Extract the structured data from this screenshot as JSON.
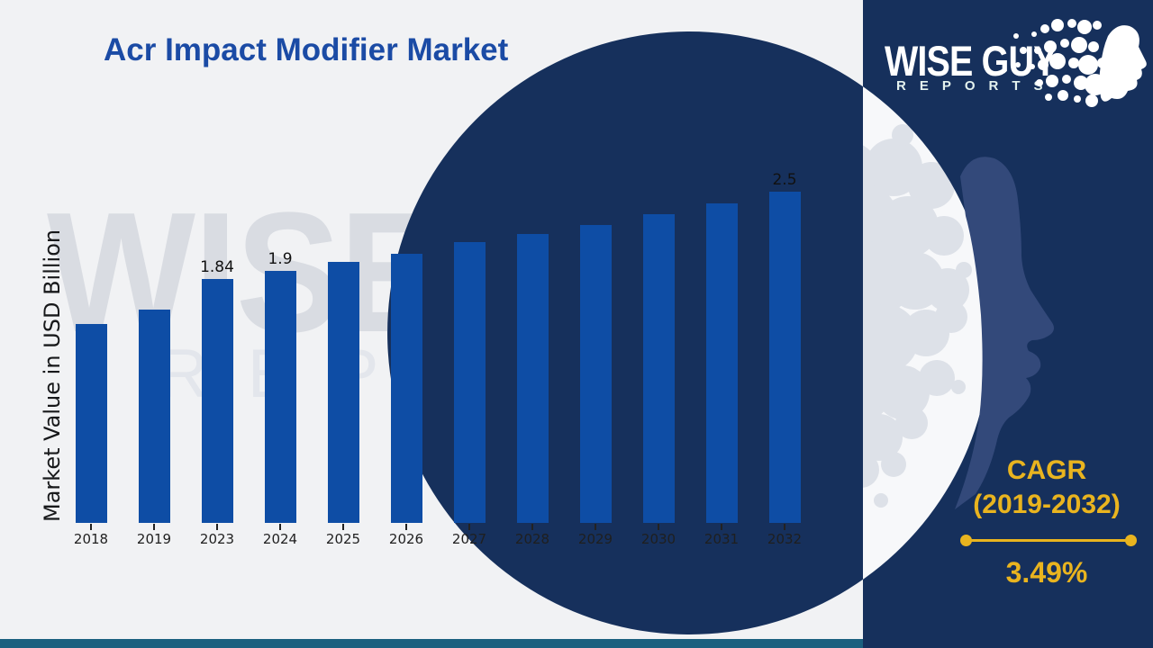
{
  "title": "Acr Impact Modifier Market",
  "brand": {
    "logo_line1": "WISE GUY",
    "logo_line2": "REPORTS",
    "watermark_line1": "WISE GU",
    "watermark_line2": "REPORTS"
  },
  "cagr": {
    "heading": "CAGR",
    "range": "(2019-2032)",
    "value": "3.49%"
  },
  "chart_data": {
    "type": "bar",
    "title": "Acr Impact Modifier Market",
    "xlabel": "",
    "ylabel": "Market Value in USD Billion",
    "categories": [
      "2018",
      "2019",
      "2023",
      "2024",
      "2025",
      "2026",
      "2027",
      "2028",
      "2029",
      "2030",
      "2031",
      "2032"
    ],
    "values": [
      1.5,
      1.61,
      1.84,
      1.9,
      1.97,
      2.03,
      2.12,
      2.18,
      2.25,
      2.33,
      2.41,
      2.5
    ],
    "value_labels": {
      "2023": "1.84",
      "2024": "1.9",
      "2032": "2.5"
    },
    "unit": "USD Billion",
    "ylim": [
      0,
      2.7
    ],
    "grid": false,
    "legend": false,
    "bar_color": "#0e4da5"
  },
  "colors": {
    "background": "#f1f2f4",
    "panel_navy": "#16305c",
    "panel_face": "#33497a",
    "bar_blue": "#0e4da5",
    "title_blue": "#1b4ba5",
    "accent_gold": "#e9b41f",
    "footer_teal": "#1b607f",
    "watermark_gray": "#d9dce2"
  }
}
